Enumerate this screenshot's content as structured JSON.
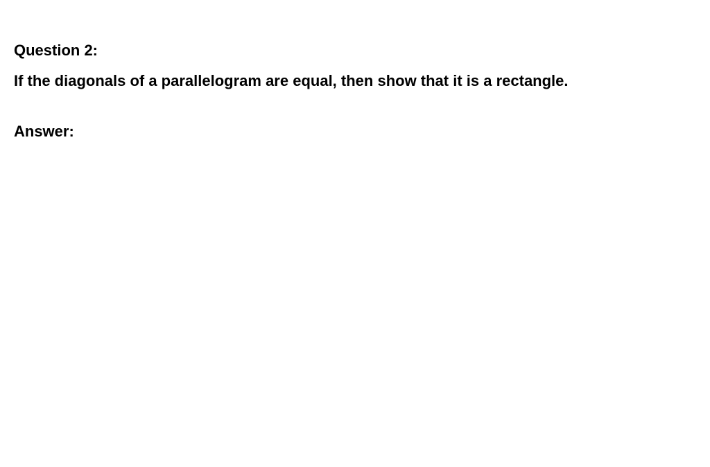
{
  "question": {
    "label": "Question 2:",
    "text": "If the diagonals of a parallelogram are equal, then show that it is a rectangle."
  },
  "answer": {
    "label": "Answer:"
  },
  "styling": {
    "background_color": "#ffffff",
    "text_color": "#000000",
    "font_family": "Arial, Helvetica, sans-serif",
    "label_fontsize": 22,
    "label_fontweight": 700,
    "body_fontsize": 22,
    "body_fontweight": 700
  }
}
